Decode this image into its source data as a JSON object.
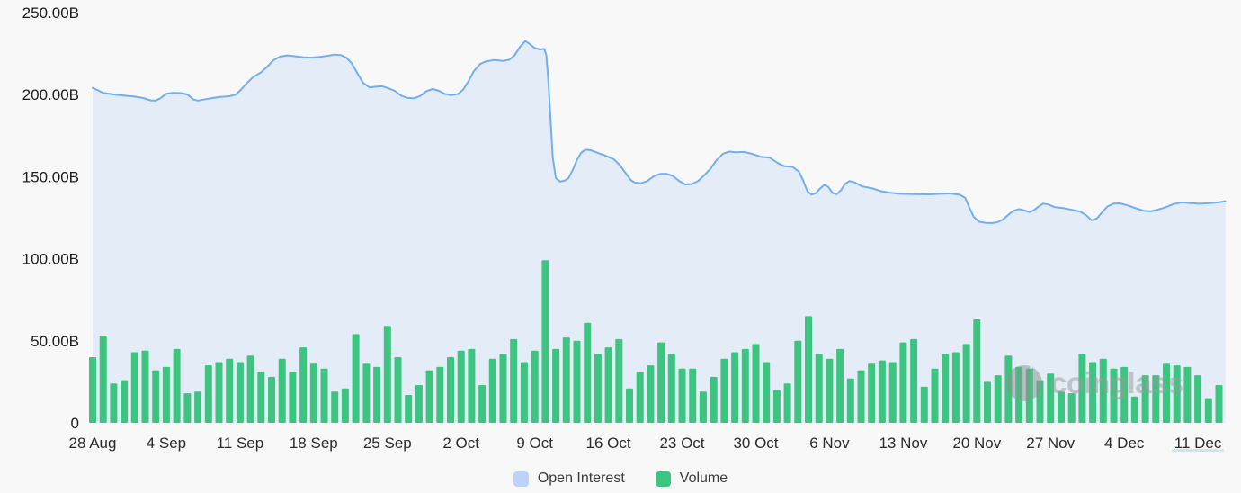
{
  "background": "#F8F8F8",
  "legend": {
    "items": [
      {
        "label": "Open Interest",
        "swatch_color": "#BED2F8"
      },
      {
        "label": "Volume",
        "swatch_color": "#3EC481"
      }
    ]
  },
  "watermark": {
    "text": "coinglass",
    "color": "#9B9B9B"
  },
  "chart_data": {
    "type": "mixed",
    "title": "",
    "xlabel": "",
    "ylabel": "",
    "grid": "off",
    "legend_position": "bottom-center",
    "y_axis": {
      "ylim": [
        0,
        250
      ],
      "ticks": [
        {
          "value": 0,
          "label": "0"
        },
        {
          "value": 50,
          "label": "50.00B"
        },
        {
          "value": 100,
          "label": "100.00B"
        },
        {
          "value": 150,
          "label": "150.00B"
        },
        {
          "value": 200,
          "label": "200.00B"
        },
        {
          "value": 250,
          "label": "250.00B"
        }
      ]
    },
    "x_axis": {
      "unit": "day",
      "start_label": "28 Aug",
      "ticks": [
        {
          "day": 0,
          "label": "28 Aug"
        },
        {
          "day": 7,
          "label": "4 Sep"
        },
        {
          "day": 14,
          "label": "11 Sep"
        },
        {
          "day": 21,
          "label": "18 Sep"
        },
        {
          "day": 28,
          "label": "25 Sep"
        },
        {
          "day": 35,
          "label": "2 Oct"
        },
        {
          "day": 42,
          "label": "9 Oct"
        },
        {
          "day": 49,
          "label": "16 Oct"
        },
        {
          "day": 56,
          "label": "23 Oct"
        },
        {
          "day": 63,
          "label": "30 Oct"
        },
        {
          "day": 70,
          "label": "6 Nov"
        },
        {
          "day": 77,
          "label": "13 Nov"
        },
        {
          "day": 84,
          "label": "20 Nov"
        },
        {
          "day": 91,
          "label": "27 Nov"
        },
        {
          "day": 98,
          "label": "4 Dec"
        },
        {
          "day": 105,
          "label": "11 Dec"
        }
      ]
    },
    "series": {
      "open_interest": {
        "name": "Open Interest",
        "type": "area-line",
        "unit": "B",
        "color": "#72AEF2",
        "fill_opacity": 0.15,
        "points": [
          [
            0,
            204
          ],
          [
            0.5,
            202.5
          ],
          [
            1,
            201
          ],
          [
            2,
            200
          ],
          [
            3,
            199.3
          ],
          [
            4,
            198.7
          ],
          [
            4.8,
            197.8
          ],
          [
            5.5,
            196.4
          ],
          [
            6,
            196.2
          ],
          [
            6.5,
            198
          ],
          [
            7,
            200.4
          ],
          [
            7.6,
            201
          ],
          [
            8.4,
            200.8
          ],
          [
            9,
            200
          ],
          [
            9.6,
            196.8
          ],
          [
            10,
            196.3
          ],
          [
            10.5,
            196.8
          ],
          [
            11,
            197.4
          ],
          [
            12,
            198.4
          ],
          [
            13,
            198.9
          ],
          [
            13.6,
            200
          ],
          [
            14,
            202.3
          ],
          [
            14.6,
            206.5
          ],
          [
            15.2,
            210.3
          ],
          [
            16,
            213.5
          ],
          [
            16.6,
            217
          ],
          [
            17.2,
            221
          ],
          [
            17.8,
            223
          ],
          [
            18.5,
            223.8
          ],
          [
            19.2,
            223.3
          ],
          [
            20,
            222.6
          ],
          [
            20.8,
            222.4
          ],
          [
            21.6,
            222.9
          ],
          [
            22.4,
            223.6
          ],
          [
            23,
            224.3
          ],
          [
            23.6,
            223.9
          ],
          [
            24.1,
            222.4
          ],
          [
            24.6,
            219
          ],
          [
            25.1,
            213.5
          ],
          [
            25.7,
            207
          ],
          [
            26.3,
            204.3
          ],
          [
            26.9,
            204.7
          ],
          [
            27.5,
            205
          ],
          [
            28.1,
            203.7
          ],
          [
            28.7,
            202.2
          ],
          [
            29.3,
            199.3
          ],
          [
            29.9,
            197.9
          ],
          [
            30.5,
            197.6
          ],
          [
            31.1,
            199
          ],
          [
            31.7,
            202
          ],
          [
            32.3,
            203.3
          ],
          [
            32.9,
            202.2
          ],
          [
            33.5,
            200.2
          ],
          [
            34.1,
            199.6
          ],
          [
            34.7,
            200.2
          ],
          [
            35.2,
            203
          ],
          [
            35.7,
            208
          ],
          [
            36.2,
            214
          ],
          [
            36.8,
            218.5
          ],
          [
            37.4,
            220.2
          ],
          [
            38.2,
            221
          ],
          [
            39,
            220.4
          ],
          [
            39.6,
            221.2
          ],
          [
            40.1,
            224
          ],
          [
            40.6,
            229
          ],
          [
            41.1,
            232.5
          ],
          [
            41.5,
            230.8
          ],
          [
            42,
            228.2
          ],
          [
            42.5,
            227.4
          ],
          [
            42.9,
            227.7
          ],
          [
            43.1,
            224
          ],
          [
            43.3,
            207
          ],
          [
            43.5,
            185
          ],
          [
            43.7,
            162
          ],
          [
            44,
            149
          ],
          [
            44.4,
            147
          ],
          [
            44.8,
            147.4
          ],
          [
            45.2,
            149
          ],
          [
            45.6,
            154
          ],
          [
            46,
            160
          ],
          [
            46.4,
            164.5
          ],
          [
            46.8,
            166.3
          ],
          [
            47.3,
            166.1
          ],
          [
            47.9,
            164.6
          ],
          [
            48.7,
            162.8
          ],
          [
            49.5,
            160.6
          ],
          [
            50.1,
            156.8
          ],
          [
            50.7,
            151.5
          ],
          [
            51.1,
            148
          ],
          [
            51.5,
            146.3
          ],
          [
            52.1,
            146
          ],
          [
            52.7,
            147.3
          ],
          [
            53.3,
            150.2
          ],
          [
            53.9,
            151.6
          ],
          [
            54.5,
            151.7
          ],
          [
            55.1,
            150.4
          ],
          [
            55.7,
            147.4
          ],
          [
            56.3,
            145.2
          ],
          [
            56.9,
            145.4
          ],
          [
            57.5,
            147.2
          ],
          [
            58.1,
            150.8
          ],
          [
            58.7,
            154.8
          ],
          [
            59.3,
            160.2
          ],
          [
            59.9,
            164
          ],
          [
            60.5,
            165.2
          ],
          [
            61.1,
            164.8
          ],
          [
            61.9,
            165
          ],
          [
            62.7,
            163.7
          ],
          [
            63.5,
            162
          ],
          [
            64.3,
            161.6
          ],
          [
            65.1,
            158.2
          ],
          [
            65.7,
            156.3
          ],
          [
            66.5,
            155.9
          ],
          [
            67.1,
            153
          ],
          [
            67.5,
            147.5
          ],
          [
            67.9,
            141
          ],
          [
            68.3,
            139
          ],
          [
            68.7,
            139.9
          ],
          [
            69.1,
            142.7
          ],
          [
            69.5,
            145
          ],
          [
            69.9,
            143.6
          ],
          [
            70.3,
            140
          ],
          [
            70.7,
            139.3
          ],
          [
            71.1,
            141.8
          ],
          [
            71.5,
            145.7
          ],
          [
            71.9,
            147.3
          ],
          [
            72.4,
            146.4
          ],
          [
            73.1,
            144
          ],
          [
            74.1,
            142.8
          ],
          [
            74.9,
            141.1
          ],
          [
            75.7,
            140.2
          ],
          [
            76.7,
            139.5
          ],
          [
            78,
            139.3
          ],
          [
            79.5,
            139.2
          ],
          [
            80.5,
            139.5
          ],
          [
            81.5,
            139.7
          ],
          [
            82.4,
            138.9
          ],
          [
            82.9,
            137
          ],
          [
            83.3,
            131
          ],
          [
            83.7,
            125.5
          ],
          [
            84.2,
            122.5
          ],
          [
            84.8,
            121.8
          ],
          [
            85.5,
            121.7
          ],
          [
            86,
            122.3
          ],
          [
            86.5,
            124
          ],
          [
            87,
            126.8
          ],
          [
            87.5,
            129.2
          ],
          [
            88,
            130.2
          ],
          [
            88.5,
            129.4
          ],
          [
            89,
            128.4
          ],
          [
            89.4,
            129.4
          ],
          [
            89.9,
            132
          ],
          [
            90.3,
            133.6
          ],
          [
            90.8,
            133
          ],
          [
            91.4,
            131.4
          ],
          [
            92.2,
            130.8
          ],
          [
            93,
            129.8
          ],
          [
            93.8,
            128.7
          ],
          [
            94.4,
            126.4
          ],
          [
            94.9,
            123.4
          ],
          [
            95.4,
            124.5
          ],
          [
            95.9,
            128.3
          ],
          [
            96.4,
            131.8
          ],
          [
            97,
            133.6
          ],
          [
            97.6,
            133.7
          ],
          [
            98.3,
            132.5
          ],
          [
            99.1,
            130.7
          ],
          [
            99.9,
            129.1
          ],
          [
            100.5,
            128.8
          ],
          [
            101.1,
            129.7
          ],
          [
            101.9,
            131.3
          ],
          [
            102.7,
            133.3
          ],
          [
            103.5,
            134.3
          ],
          [
            104.3,
            133.8
          ],
          [
            105.1,
            133.5
          ],
          [
            106.1,
            133.8
          ],
          [
            107,
            134.4
          ],
          [
            107.6,
            135
          ]
        ]
      },
      "volume": {
        "name": "Volume",
        "type": "bar",
        "unit": "B",
        "color": "#3EC481",
        "values": [
          40,
          53,
          24,
          26,
          43,
          44,
          32,
          34,
          45,
          18,
          19,
          35,
          37,
          39,
          37,
          41,
          31,
          28,
          39,
          31,
          46,
          36,
          33,
          19,
          21,
          54,
          36,
          34,
          59,
          40,
          17,
          23,
          32,
          34,
          40,
          44,
          45,
          23,
          39,
          42,
          51,
          37,
          44,
          99,
          45,
          52,
          50,
          61,
          42,
          46,
          51,
          21,
          31,
          35,
          49,
          42,
          33,
          33,
          19,
          28,
          39,
          43,
          45,
          48,
          37,
          20,
          24,
          50,
          65,
          42,
          39,
          45,
          27,
          32,
          36,
          38,
          37,
          49,
          51,
          22,
          33,
          42,
          43,
          48,
          63,
          25,
          29,
          41,
          34,
          33,
          26,
          30,
          19,
          18,
          42,
          37,
          39,
          33,
          34,
          16,
          29,
          29,
          36,
          35,
          34,
          29,
          15,
          23
        ]
      }
    }
  }
}
